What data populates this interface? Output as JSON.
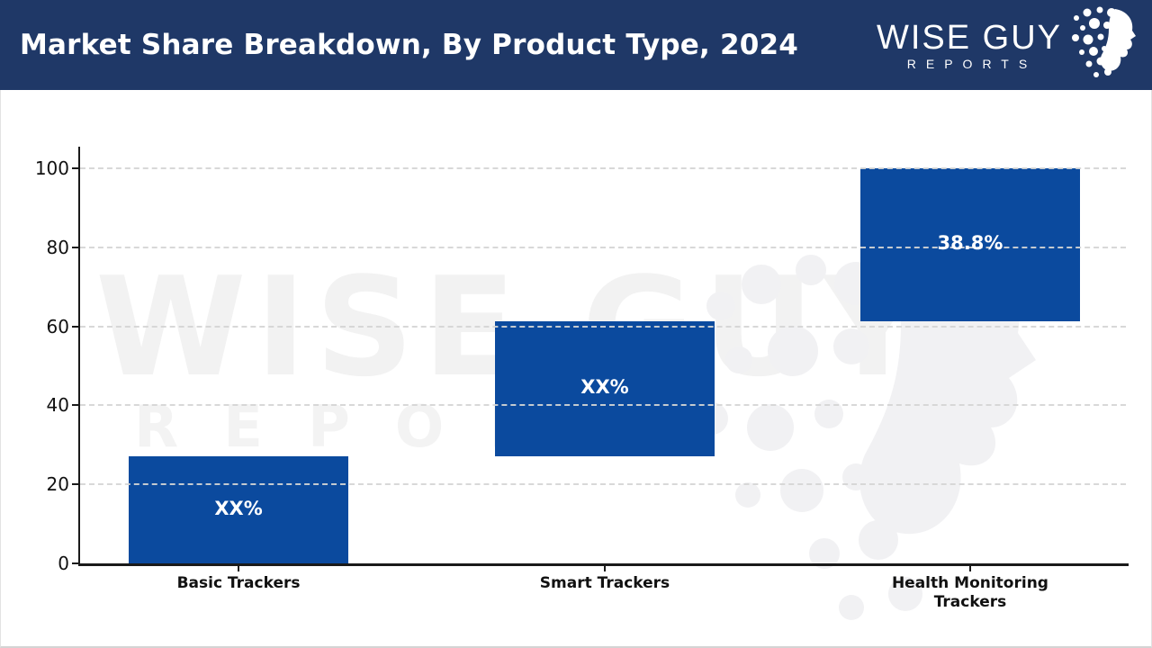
{
  "header": {
    "title": "Market Share Breakdown, By Product Type, 2024",
    "logo": {
      "line1": "WISE GUY",
      "line2": "REPORTS"
    }
  },
  "watermark": {
    "line1": "WISE GUY",
    "line2": "REPORTS"
  },
  "colors": {
    "header_bg": "#1f3867",
    "bar": "#0b4a9e",
    "bar_label_text": "#ffffff",
    "axis": "#1a1a1a",
    "gridline": "#d5d5d5",
    "watermark": "#f2f2f2",
    "title_text": "#ffffff"
  },
  "chart_data": {
    "type": "bar",
    "subtype": "waterfall",
    "title": "Market Share Breakdown, By Product Type, 2024",
    "categories": [
      "Basic Trackers",
      "Smart Trackers",
      "Health Monitoring Trackers"
    ],
    "segments": [
      {
        "category": "Basic Trackers",
        "start": 0,
        "end": 27.1,
        "value": 27.1,
        "value_label": "XX%"
      },
      {
        "category": "Smart Trackers",
        "start": 27.1,
        "end": 61.2,
        "value": 34.1,
        "value_label": "XX%"
      },
      {
        "category": "Health Monitoring Trackers",
        "start": 61.2,
        "end": 100,
        "value": 38.8,
        "value_label": "38.8%"
      }
    ],
    "xlabel": "",
    "ylabel": "",
    "ylim": [
      0,
      100
    ],
    "yticks": [
      0,
      20,
      40,
      60,
      80,
      100
    ],
    "grid": "horizontal-dashed-over-bars",
    "legend": "none"
  }
}
